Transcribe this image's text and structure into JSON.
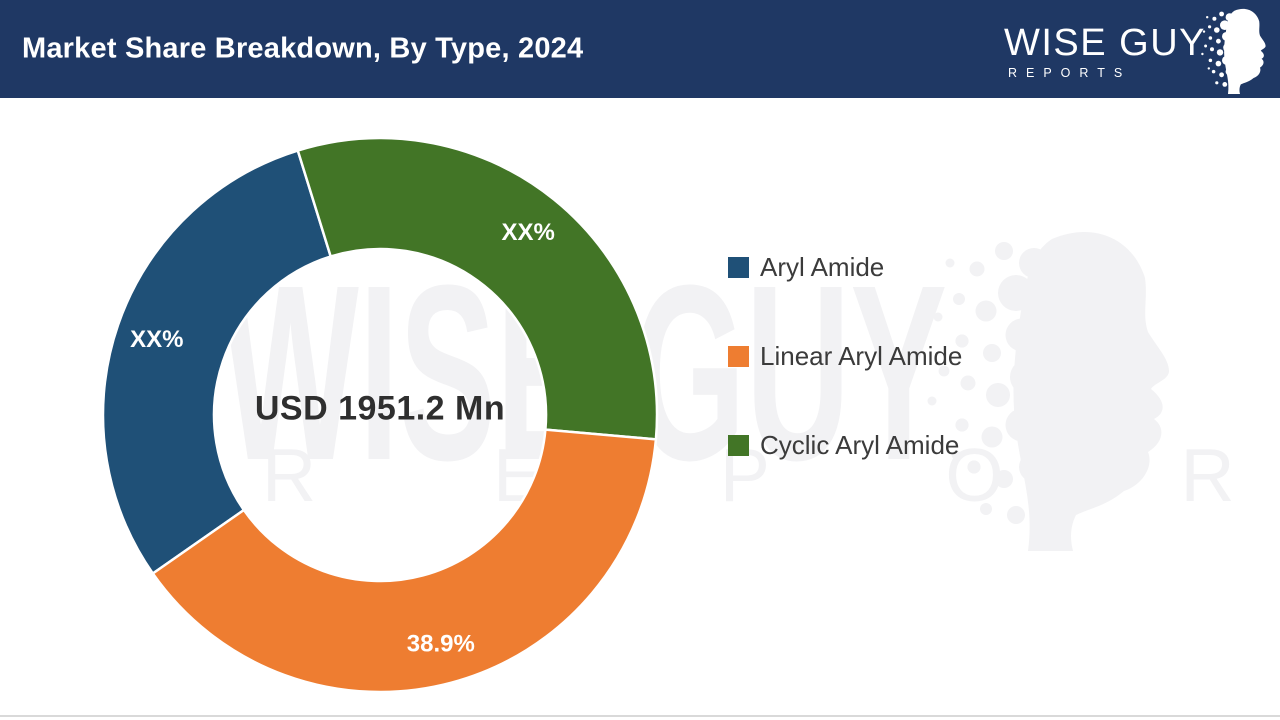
{
  "header": {
    "title": "Market Share Breakdown, By Type, 2024",
    "bg_color": "#1F3864",
    "logo": {
      "line1": "WISE GUY",
      "line2": "REPORTS"
    }
  },
  "watermark": {
    "line1": "WISE GUY",
    "line2": "R E P O R T S"
  },
  "chart_data": {
    "type": "donut",
    "title": "Market Share Breakdown, By Type, 2024",
    "center_label": "USD 1951.2 Mn",
    "start_angle_deg": 235.1,
    "inner_radius_ratio": 0.6,
    "label_radius": 236,
    "legend_position": "right",
    "draw_order": [
      0,
      2,
      1
    ],
    "segments": [
      {
        "name": "Aryl Amide",
        "label": "XX%",
        "value_pct": 29.9,
        "color": "#1F5077"
      },
      {
        "name": "Linear Aryl Amide",
        "label": "38.9%",
        "value_pct": 38.9,
        "color": "#EE7D31"
      },
      {
        "name": "Cyclic Aryl Amide",
        "label": "XX%",
        "value_pct": 31.2,
        "color": "#427526"
      }
    ]
  },
  "footer": {
    "divider_color": "#D9D9D9"
  }
}
